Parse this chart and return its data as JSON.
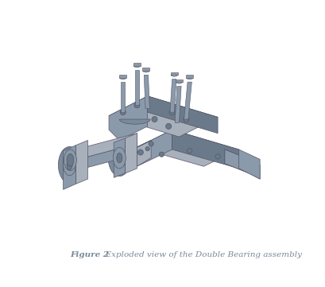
{
  "title": "Figure 2  Exploded view of the Double Bearing assembly",
  "title_bold_part": "Figure 2",
  "title_italic": true,
  "background_color": "#ffffff",
  "part_color_light": "#a8b0bc",
  "part_color_mid": "#8a9aaa",
  "part_color_dark": "#6a7a8a",
  "part_color_shadow": "#7a8a9a",
  "caption_color": "#7a8a9a",
  "figsize": [
    4.09,
    3.61
  ],
  "dpi": 100
}
